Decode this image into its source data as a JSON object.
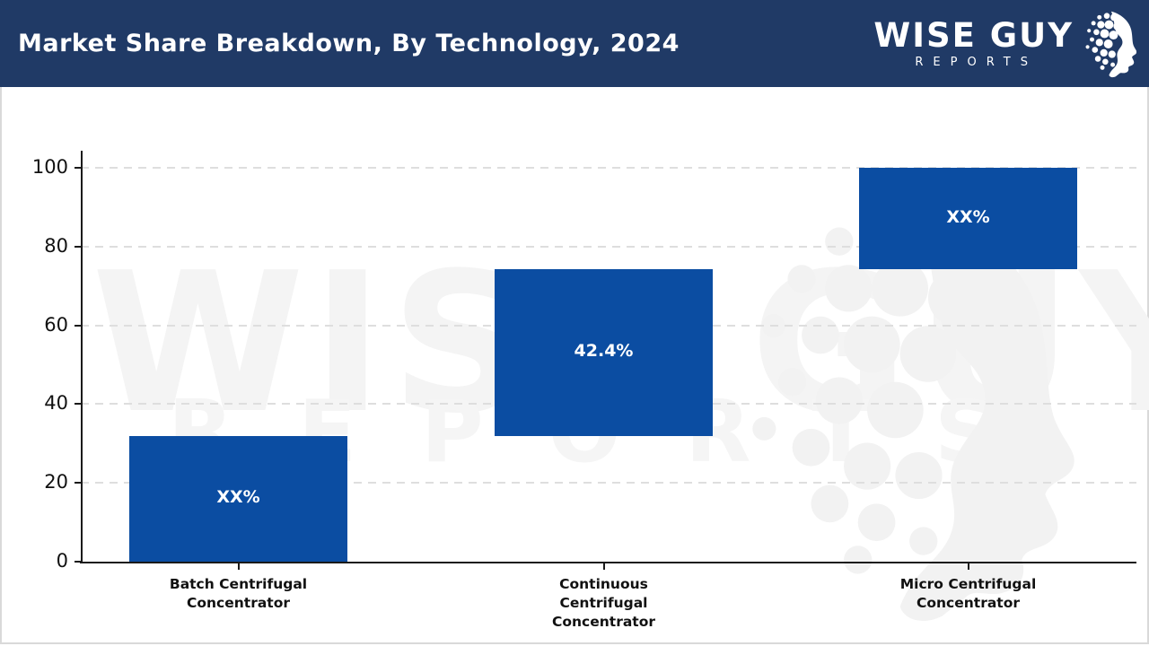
{
  "header": {
    "title": "Market Share Breakdown, By Technology, 2024",
    "logo": {
      "line1": "WISE GUY",
      "line2": "REPORTS"
    }
  },
  "watermark": {
    "text1": "WISE GUY",
    "text2": "REPORTS"
  },
  "chart_data": {
    "type": "bar",
    "subtype": "waterfall-floating-bars",
    "title": "Market Share Breakdown, By Technology, 2024",
    "categories": [
      [
        "Batch Centrifugal",
        "Concentrator"
      ],
      [
        "Continuous",
        "Centrifugal",
        "Concentrator"
      ],
      [
        "Micro Centrifugal",
        "Concentrator"
      ]
    ],
    "segments": [
      {
        "start": 0,
        "end": 31.8,
        "label": "XX%"
      },
      {
        "start": 31.8,
        "end": 74.2,
        "label": "42.4%"
      },
      {
        "start": 74.2,
        "end": 100,
        "label": "XX%"
      }
    ],
    "ylim": [
      0,
      100
    ],
    "yticks": [
      0,
      20,
      40,
      60,
      80,
      100
    ],
    "xlabel": "",
    "ylabel": "",
    "grid": "horizontal-dashed",
    "legend": "none",
    "bar_color": "#0b4da2",
    "bar_label_color": "#ffffff",
    "header_color": "#203a66"
  }
}
